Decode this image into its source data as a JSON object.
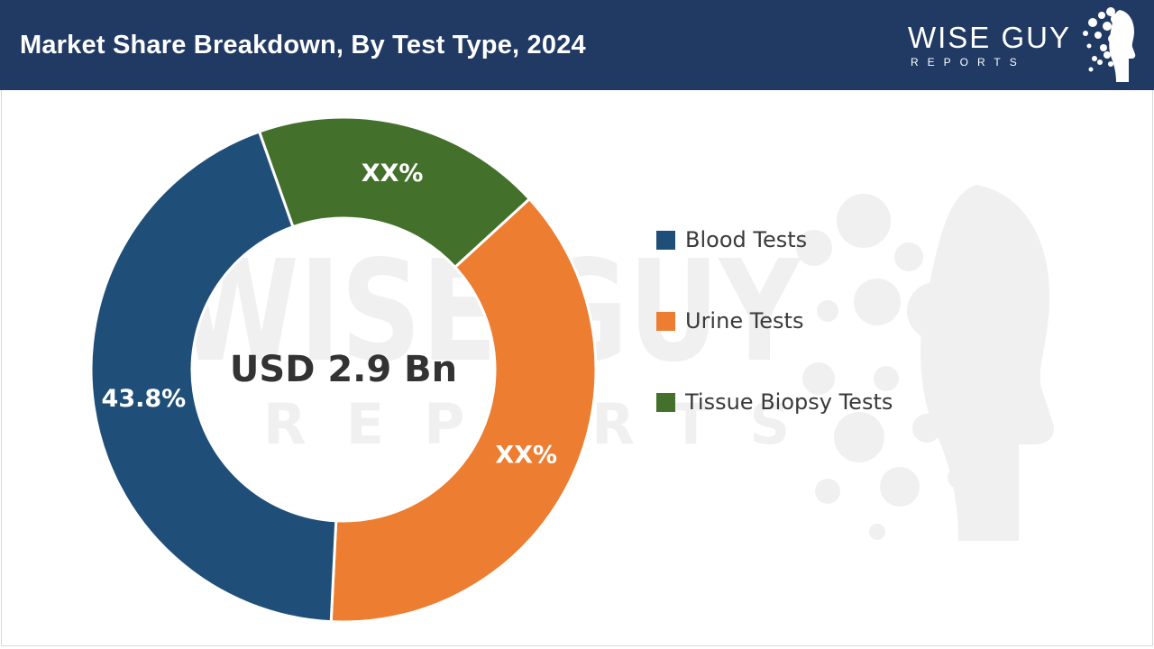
{
  "header": {
    "title": "Market Share Breakdown, By Test Type, 2024",
    "brand": {
      "line1": "WISE GUY",
      "line2": "REPORTS"
    }
  },
  "watermark": {
    "line1": "WISE GUY",
    "line2": "REPORTS"
  },
  "chart_data": {
    "type": "pie",
    "subtype": "donut",
    "title": "Market Share Breakdown, By Test Type, 2024",
    "center_label": "USD 2.9 Bn",
    "direction": "counterclockwise",
    "rotation_deg_from_top": -19.5,
    "donut_hole_ratio": 0.6,
    "legend_position": "right",
    "slices": [
      {
        "name": "Blood Tests",
        "value_pct": 43.8,
        "label": "43.8%",
        "color": "#1F4E79"
      },
      {
        "name": "Urine Tests",
        "value_pct": 37.6,
        "label": "XX%",
        "color": "#ED7D31"
      },
      {
        "name": "Tissue Biopsy Tests",
        "value_pct": 18.6,
        "label": "XX%",
        "color": "#43702A"
      }
    ]
  },
  "colors": {
    "header_bg": "#213A64",
    "page_bg": "#FFFFFF",
    "accent_blue": "#1F4E79",
    "accent_orange": "#ED7D31",
    "accent_green": "#43702A",
    "center_label_color": "#333333",
    "legend_text_color": "#3A3A3A",
    "watermark_color": "#F0F0F0"
  }
}
